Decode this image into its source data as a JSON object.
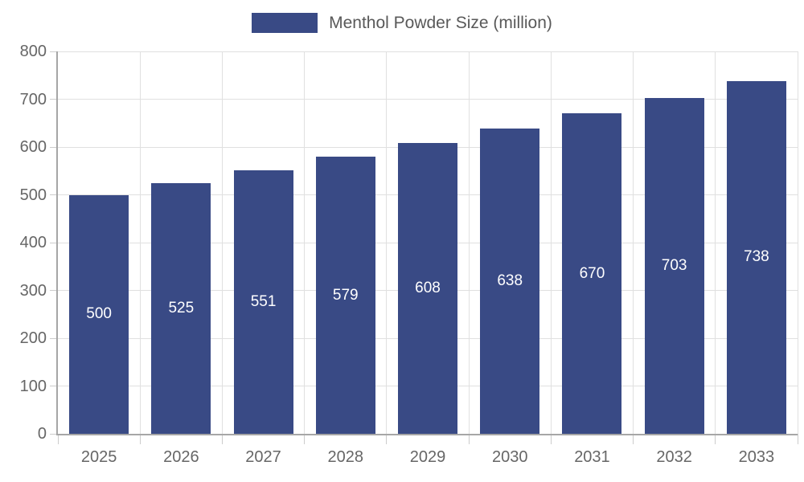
{
  "legend": {
    "label": "Menthol Powder Size (million)"
  },
  "chart_data": {
    "type": "bar",
    "title": "",
    "series_name": "Menthol Powder Size (million)",
    "categories": [
      "2025",
      "2026",
      "2027",
      "2028",
      "2029",
      "2030",
      "2031",
      "2032",
      "2033"
    ],
    "values": [
      500,
      525,
      551,
      579,
      608,
      638,
      670,
      703,
      738
    ],
    "xlabel": "",
    "ylabel": "",
    "ylim": [
      0,
      800
    ],
    "ytick_interval": 100,
    "yticks": [
      0,
      100,
      200,
      300,
      400,
      500,
      600,
      700,
      800
    ],
    "grid": true,
    "legend_position": "top",
    "bar_labels_inside": true,
    "colors": {
      "bar": "#394a85",
      "bar_label": "#ffffff",
      "axis_text": "#666666",
      "legend_text": "#595959",
      "grid_line": "#e0e0e0",
      "axis_line": "#a6a6a6",
      "tick": "#cccccc",
      "background": "#ffffff"
    }
  }
}
